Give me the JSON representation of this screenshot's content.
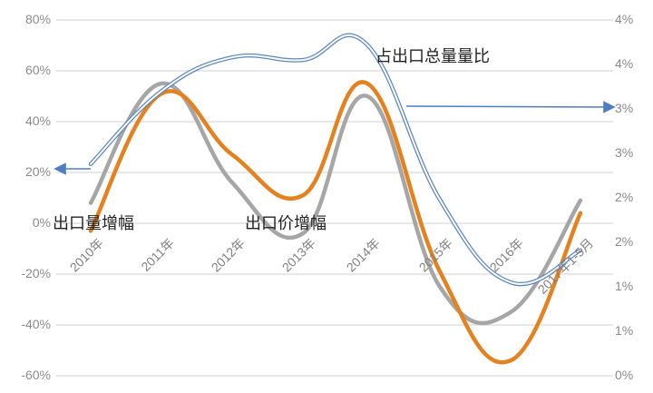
{
  "chart_data": {
    "type": "line",
    "title": "",
    "categories": [
      "2010年",
      "2011年",
      "2012年",
      "2013年",
      "2014年",
      "2015年",
      "2016年",
      "2017年1-5月"
    ],
    "series": [
      {
        "name": "出口量增幅",
        "axis": "left",
        "color": "#e3821f",
        "values": [
          -3,
          51,
          27,
          11,
          55,
          -19,
          -54,
          4
        ]
      },
      {
        "name": "出口价增幅",
        "axis": "left",
        "color": "#a6a6a6",
        "values": [
          8,
          55,
          16,
          -4,
          50,
          -25,
          -35,
          9
        ]
      },
      {
        "name": "占出口总量量比",
        "axis": "right",
        "color": "#5b86c0",
        "values": [
          2.38,
          3.2,
          3.58,
          3.55,
          3.72,
          1.98,
          1.05,
          1.41
        ]
      }
    ],
    "left_axis": {
      "ticks": [
        "80%",
        "60%",
        "40%",
        "20%",
        "0%",
        "-20%",
        "-40%",
        "-60%"
      ],
      "range": [
        -60,
        80
      ]
    },
    "right_axis": {
      "ticks": [
        "4%",
        "4%",
        "3%",
        "3%",
        "2%",
        "2%",
        "1%",
        "1%",
        "0%"
      ],
      "range": [
        0,
        4
      ]
    },
    "grid": true,
    "legend": "none (inline annotations)",
    "annotations": [
      {
        "text": "出口量增幅",
        "points_to": "left axis"
      },
      {
        "text": "出口价增幅"
      },
      {
        "text": "占出口总量量比",
        "points_to": "right axis"
      }
    ]
  },
  "labels": {
    "volume": "出口量增幅",
    "price": "出口价增幅",
    "share": "占出口总量量比"
  }
}
